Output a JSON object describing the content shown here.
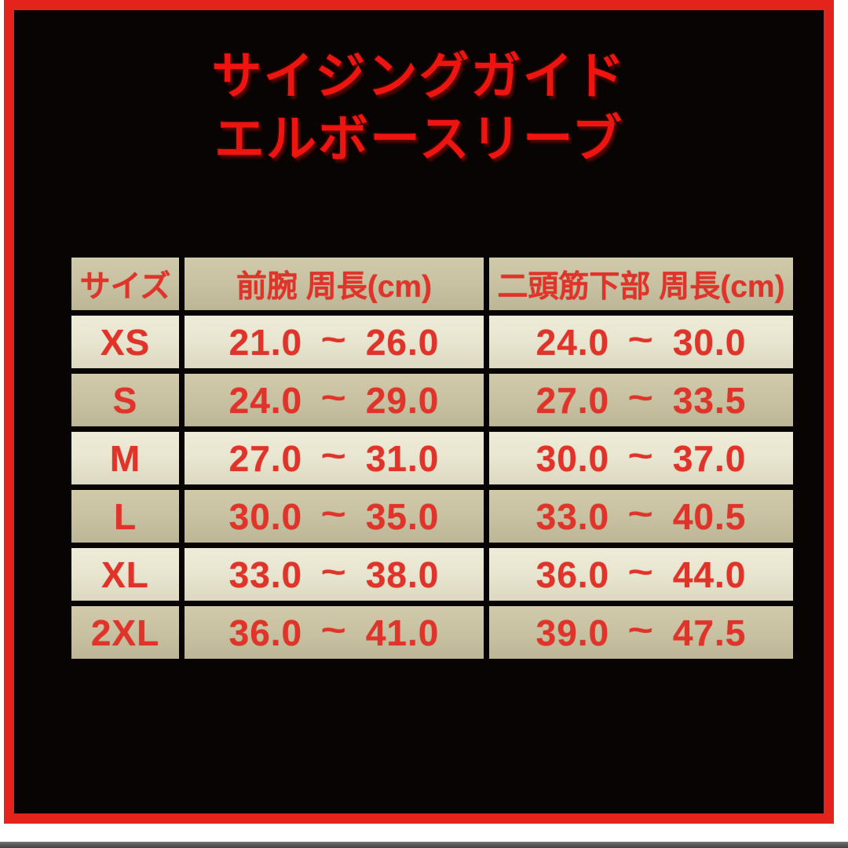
{
  "poster": {
    "title_line1": "サイジングガイド",
    "title_line2": "エルボースリーブ"
  },
  "table": {
    "tilde": "~",
    "columns": [
      "サイズ",
      "前腕 周長(cm)",
      "二頭筋下部 周長(cm)"
    ],
    "rows": [
      {
        "size": "XS",
        "forearm": {
          "min": "21.0",
          "max": "26.0"
        },
        "biceps": {
          "min": "24.0",
          "max": "30.0"
        }
      },
      {
        "size": "S",
        "forearm": {
          "min": "24.0",
          "max": "29.0"
        },
        "biceps": {
          "min": "27.0",
          "max": "33.5"
        }
      },
      {
        "size": "M",
        "forearm": {
          "min": "27.0",
          "max": "31.0"
        },
        "biceps": {
          "min": "30.0",
          "max": "37.0"
        }
      },
      {
        "size": "L",
        "forearm": {
          "min": "30.0",
          "max": "35.0"
        },
        "biceps": {
          "min": "33.0",
          "max": "40.5"
        }
      },
      {
        "size": "XL",
        "forearm": {
          "min": "33.0",
          "max": "38.0"
        },
        "biceps": {
          "min": "36.0",
          "max": "44.0"
        }
      },
      {
        "size": "2XL",
        "forearm": {
          "min": "36.0",
          "max": "41.0"
        },
        "biceps": {
          "min": "39.0",
          "max": "47.5"
        }
      }
    ]
  },
  "theme": {
    "frame_red": "#e3231c",
    "poster_black": "#070403",
    "title_red": "#ee1410",
    "table_text_red": "#e0342a",
    "header_bg": "#c8c2a2",
    "row_light_bg": "#e8e5d0",
    "row_dark_bg": "#c8c2a2",
    "footer_gray": "#5a5a5a",
    "page_white": "#ffffff"
  }
}
